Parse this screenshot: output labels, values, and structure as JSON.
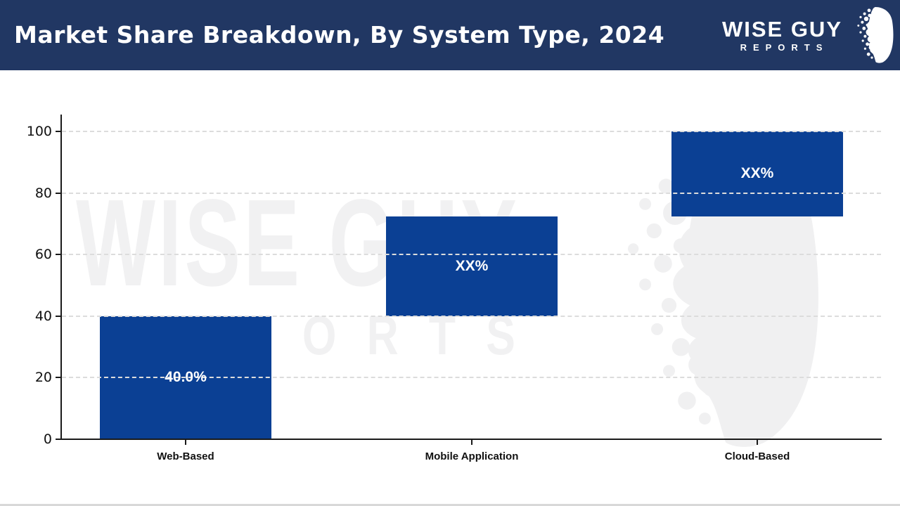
{
  "header": {
    "title": "Market Share Breakdown, By System Type, 2024",
    "logo_line1": "WISE GUY",
    "logo_line2": "REPORTS"
  },
  "watermark": {
    "line1": "WISE GUY",
    "line2": "REPORTS"
  },
  "colors": {
    "header_bg": "#213763",
    "bar": "#0b4094",
    "gridline": "#dcdcdc",
    "axis": "#1a1a1a",
    "bar_label_text": "#ffffff",
    "watermark": "#f1f1f2"
  },
  "chart_data": {
    "type": "bar",
    "subtype": "floating-segment-waterfall",
    "title": "Market Share Breakdown, By System Type, 2024",
    "categories": [
      "Web-Based",
      "Mobile Application",
      "Cloud-Based"
    ],
    "series": [
      {
        "name": "Market Share (%)",
        "segments": [
          {
            "category": "Web-Based",
            "start": 0,
            "end": 40,
            "value": 40.0,
            "label": "40.0%"
          },
          {
            "category": "Mobile Application",
            "start": 40,
            "end": 72.5,
            "value": 32.5,
            "label": "XX%"
          },
          {
            "category": "Cloud-Based",
            "start": 72.5,
            "end": 100,
            "value": 27.5,
            "label": "XX%"
          }
        ]
      }
    ],
    "yticks": [
      0,
      20,
      40,
      60,
      80,
      100
    ],
    "ylim": [
      0,
      105.5
    ],
    "xlabel": "",
    "ylabel": "",
    "grid": "horizontal-dashed",
    "legend": "none"
  }
}
